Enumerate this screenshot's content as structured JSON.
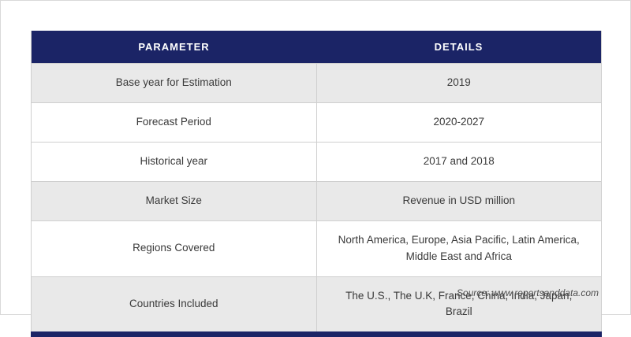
{
  "chart_data": {
    "type": "table",
    "columns": [
      "PARAMETER",
      "DETAILS"
    ],
    "rows": [
      [
        "Base year for Estimation",
        "2019"
      ],
      [
        "Forecast Period",
        "2020-2027"
      ],
      [
        "Historical year",
        "2017 and 2018"
      ],
      [
        "Market Size",
        "Revenue in USD million"
      ],
      [
        "Regions Covered",
        "North America, Europe, Asia Pacific, Latin America, Middle East and Africa"
      ],
      [
        "Countries Included",
        "The U.S., The U.K, France, China, India, Japan, Brazil"
      ]
    ]
  },
  "source": {
    "label": "Source: www.reportsanddata.com"
  },
  "colors": {
    "header_navy": "#1b2466",
    "shaded_row": "#e9e9e9",
    "grid_line": "#cfcfcf"
  }
}
